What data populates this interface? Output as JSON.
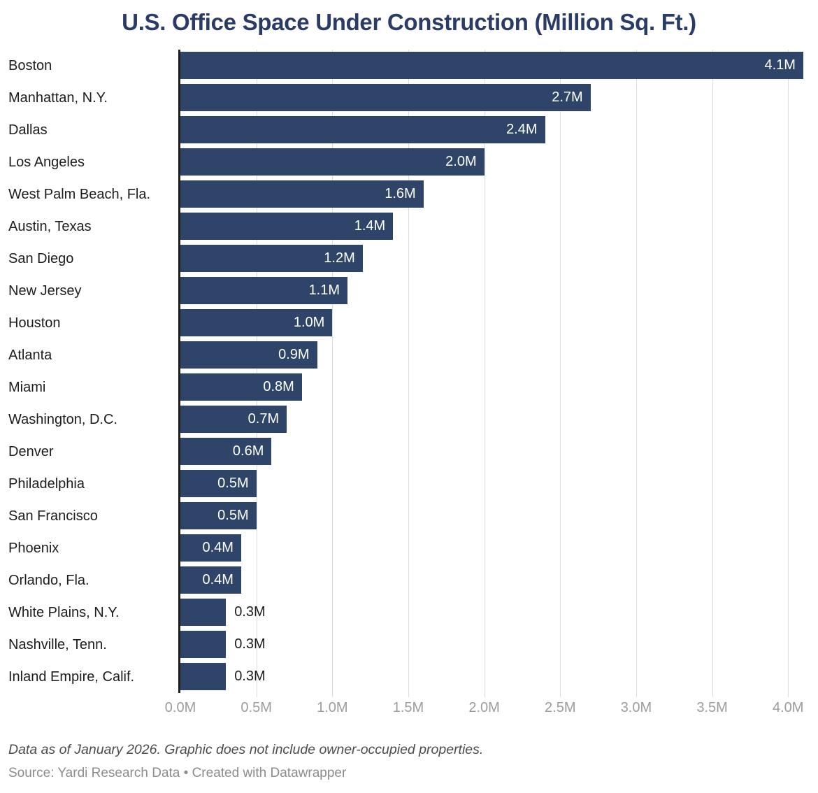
{
  "title": "U.S. Office Space Under Construction (Million Sq. Ft.)",
  "chart_data": {
    "type": "bar",
    "orientation": "horizontal",
    "unit": "million square feet",
    "categories": [
      "Boston",
      "Manhattan, N.Y.",
      "Dallas",
      "Los Angeles",
      "West Palm Beach, Fla.",
      "Austin, Texas",
      "San Diego",
      "New Jersey",
      "Houston",
      "Atlanta",
      "Miami",
      "Washington, D.C.",
      "Denver",
      "Philadelphia",
      "San Francisco",
      "Phoenix",
      "Orlando, Fla.",
      "White Plains, N.Y.",
      "Nashville, Tenn.",
      "Inland Empire, Calif."
    ],
    "values": [
      4.1,
      2.7,
      2.4,
      2.0,
      1.6,
      1.4,
      1.2,
      1.1,
      1.0,
      0.9,
      0.8,
      0.7,
      0.6,
      0.5,
      0.5,
      0.4,
      0.4,
      0.3,
      0.3,
      0.3
    ],
    "value_labels": [
      "4.1M",
      "2.7M",
      "2.4M",
      "2.0M",
      "1.6M",
      "1.4M",
      "1.2M",
      "1.1M",
      "1.0M",
      "0.9M",
      "0.8M",
      "0.7M",
      "0.6M",
      "0.5M",
      "0.5M",
      "0.4M",
      "0.4M",
      "0.3M",
      "0.3M",
      "0.3M"
    ],
    "inside_label_min_value": 0.4,
    "x_tick_labels": [
      "0.0M",
      "0.5M",
      "1.0M",
      "1.5M",
      "2.0M",
      "2.5M",
      "3.0M",
      "3.5M",
      "4.0M"
    ],
    "x_tick_values": [
      0,
      0.5,
      1.0,
      1.5,
      2.0,
      2.5,
      3.0,
      3.5,
      4.0
    ],
    "xlim": [
      0,
      4.16
    ],
    "grid": "vertical-on",
    "legend": "none",
    "bar_color": "#2E4569",
    "title_color": "#2B3B67",
    "gridline_color": "#DCDCDC",
    "axis_line_color": "#1F1F1F",
    "tick_label_color": "#9C9C9C",
    "category_label_color": "#1D1D1D",
    "value_label_inside_color": "#FFFFFF",
    "value_label_outside_color": "#1D1D1D"
  },
  "footer": {
    "note": "Data as of January 2026. Graphic does not include owner-occupied properties.",
    "source": "Source: Yardi Research Data • Created with Datawrapper"
  }
}
